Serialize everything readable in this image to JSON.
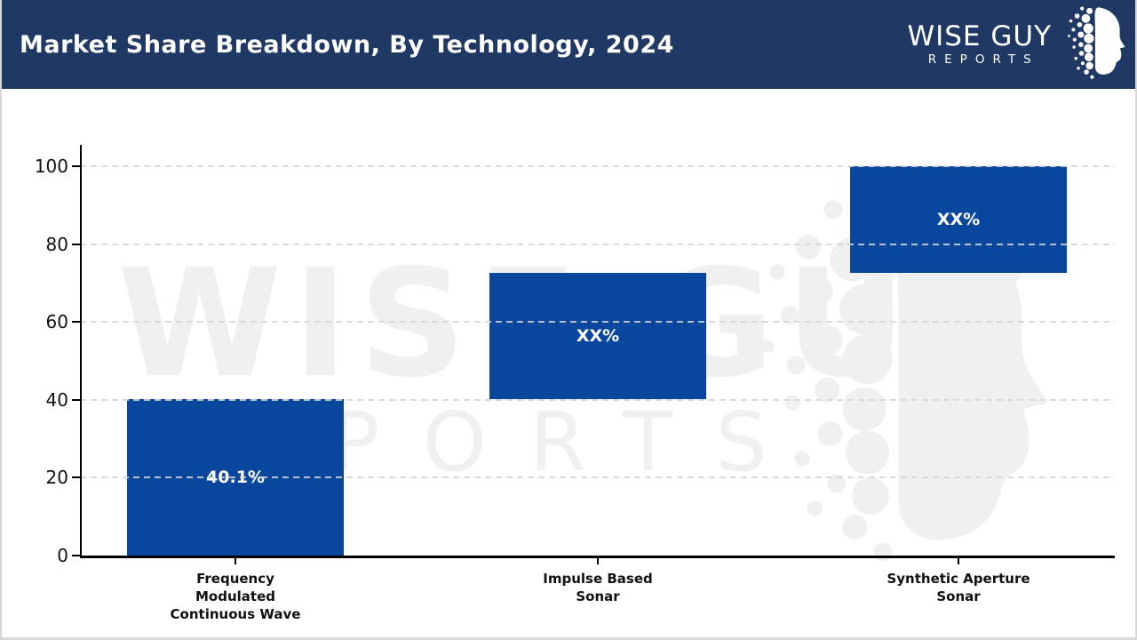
{
  "header": {
    "title": "Market Share Breakdown, By Technology, 2024",
    "logo": {
      "line1": "WISE GUY",
      "line2": "REPORTS"
    }
  },
  "watermark": {
    "line1": "WISE GUY",
    "line2": "REPORTS"
  },
  "chart_data": {
    "type": "bar",
    "variant": "waterfall",
    "title": "Market Share Breakdown, By Technology, 2024",
    "xlabel": "",
    "ylabel": "",
    "ylim": [
      0,
      100
    ],
    "yticks": [
      0,
      20,
      40,
      60,
      80,
      100
    ],
    "grid": "horizontal-dashed",
    "legend": "none",
    "categories": [
      {
        "lines": [
          "Frequency",
          "Modulated",
          "Continuous Wave"
        ]
      },
      {
        "lines": [
          "Impulse Based",
          "Sonar"
        ]
      },
      {
        "lines": [
          "Synthetic Aperture",
          "Sonar"
        ]
      }
    ],
    "segments": [
      {
        "category": "Frequency Modulated Continuous Wave",
        "start": 0,
        "end": 40.1,
        "value_label": "40.1%"
      },
      {
        "category": "Impulse Based Sonar",
        "start": 40.1,
        "end": 72.6,
        "value_label": "XX%"
      },
      {
        "category": "Synthetic Aperture Sonar",
        "start": 72.6,
        "end": 100,
        "value_label": "XX%"
      }
    ]
  },
  "colors": {
    "header_bg": "#1f3864",
    "bar": "#09479e",
    "gridline": "#d9d9d9",
    "watermark": "#f0f0f0",
    "axis": "#000000",
    "title_text": "#ffffff",
    "bar_label_text": "#ffffff"
  }
}
